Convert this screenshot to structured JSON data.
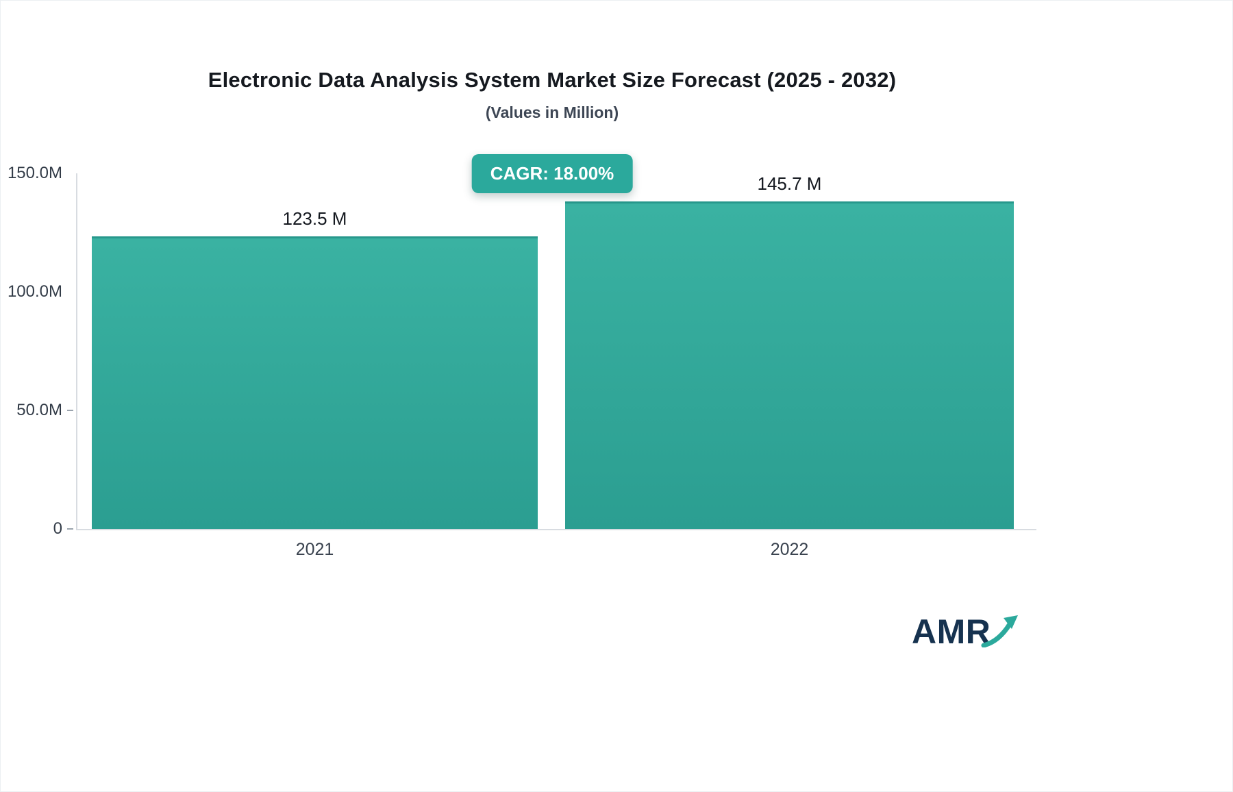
{
  "header": {
    "title": "Electronic Data Analysis System Market Size Forecast (2025 - 2032)",
    "subtitle": "(Values in Million)"
  },
  "badge": {
    "label": "CAGR: 18.00%",
    "color": "#2BA99C"
  },
  "logo": {
    "text": "AMR",
    "arrow_color": "#2BA99C",
    "text_color": "#16324f"
  },
  "chart_data": {
    "type": "bar",
    "title": "Electronic Data Analysis System Market Size Forecast (2025 - 2032)",
    "subtitle": "(Values in Million)",
    "categories": [
      "2021",
      "2022"
    ],
    "values": [
      123.5,
      145.7
    ],
    "value_labels": [
      "123.5 M",
      "145.7 M"
    ],
    "cagr": "18.00%",
    "xlabel": "",
    "ylabel": "",
    "ylim": [
      0,
      150
    ],
    "yticks": [
      {
        "label": "0",
        "value": 0,
        "dash": true
      },
      {
        "label": "50.0M",
        "value": 50,
        "dash": true
      },
      {
        "label": "100.0M",
        "value": 100,
        "dash": false
      },
      {
        "label": "150.0M",
        "value": 150,
        "dash": false
      }
    ],
    "bar_color_top": "#3ab2a2",
    "bar_color_bottom": "#2b9e91",
    "grid": false,
    "legend": "none"
  }
}
